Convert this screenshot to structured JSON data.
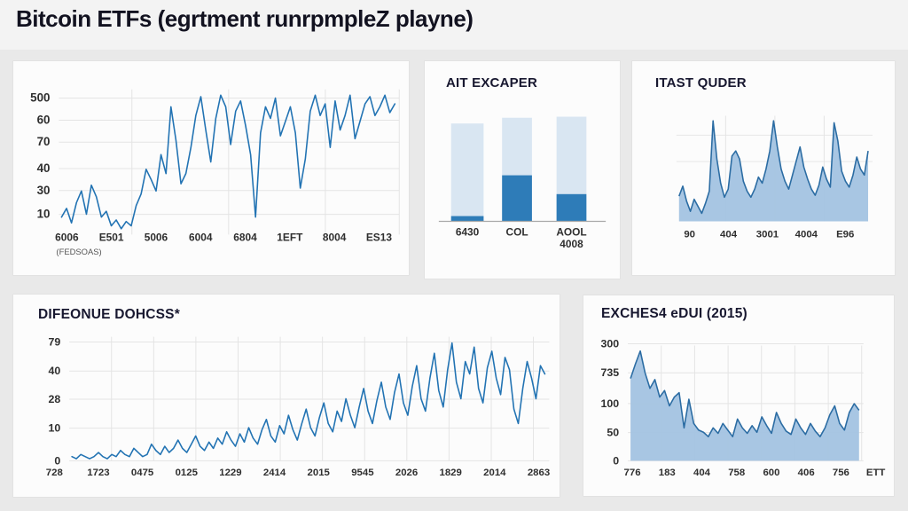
{
  "page_title": "Bitcoin ETFs (egrtment runrpmpleZ playne)",
  "colors": {
    "page_bg": "#e9e9e9",
    "header_bg": "#f3f3f3",
    "card_bg": "#fcfcfc",
    "card_border": "#e2e2e2",
    "title_text": "#121220",
    "panel_title_text": "#181830",
    "axis_text": "#2f2f2f",
    "caption_text": "#555555",
    "grid": "#e4e4e4",
    "axis_line": "#a8a8a8",
    "line": "#2273b3",
    "area_fill": "#a3c3e2",
    "area_stroke": "#2b6ca3",
    "bar_light": "#d9e6f2",
    "bar_dark": "#2e7cb8"
  },
  "chart_data": [
    {
      "id": "tl",
      "type": "line",
      "title": "",
      "y_ticks": [
        "500",
        "60",
        "70",
        "40",
        "30",
        "10"
      ],
      "x_ticks": [
        "6006",
        "E501",
        "5006",
        "6004",
        "6804",
        "1EFT",
        "8004",
        "ES13"
      ],
      "caption": "(FEDSOAS)",
      "ylim": [
        0,
        100
      ],
      "values": [
        12,
        18,
        8,
        22,
        30,
        14,
        34,
        26,
        12,
        16,
        6,
        10,
        4,
        9,
        6,
        20,
        28,
        45,
        38,
        30,
        55,
        42,
        88,
        65,
        35,
        42,
        60,
        82,
        95,
        72,
        50,
        80,
        96,
        88,
        62,
        85,
        92,
        75,
        55,
        12,
        70,
        88,
        80,
        94,
        68,
        78,
        88,
        70,
        32,
        52,
        85,
        96,
        82,
        90,
        60,
        92,
        72,
        82,
        96,
        66,
        78,
        90,
        95,
        82,
        88,
        96,
        84,
        90
      ]
    },
    {
      "id": "tm",
      "type": "bar",
      "title": "AIT EXCAPER",
      "categories": [
        [
          "6430"
        ],
        [
          "COL"
        ],
        [
          "AOOL",
          "4008"
        ]
      ],
      "light_fractions": [
        0.935,
        0.99,
        1.0
      ],
      "dark_fractions": [
        0.05,
        0.44,
        0.26
      ]
    },
    {
      "id": "tr",
      "type": "area",
      "title": "ITAST QUDER",
      "x_ticks": [
        "90",
        "404",
        "3001",
        "4004",
        "E96"
      ],
      "ylim": [
        0,
        105
      ],
      "values": [
        25,
        35,
        20,
        10,
        22,
        15,
        8,
        18,
        30,
        100,
        62,
        38,
        24,
        32,
        65,
        70,
        62,
        40,
        30,
        24,
        32,
        44,
        38,
        52,
        70,
        100,
        74,
        52,
        40,
        32,
        46,
        60,
        74,
        54,
        42,
        32,
        26,
        36,
        54,
        42,
        34,
        98,
        80,
        50,
        40,
        34,
        46,
        64,
        52,
        46,
        70
      ]
    },
    {
      "id": "bl",
      "type": "line",
      "title": "DIFEONUE DOHCSS*",
      "y_ticks": [
        "79",
        "40",
        "28",
        "10",
        "0"
      ],
      "x_ticks": [
        "728",
        "1723",
        "0475",
        "0125",
        "1229",
        "2414",
        "2015",
        "9545",
        "2026",
        "1829",
        "2014",
        "2863"
      ],
      "ylim": [
        0,
        60
      ],
      "values": [
        2,
        1,
        3,
        2,
        1,
        2,
        4,
        2,
        1,
        3,
        2,
        5,
        3,
        2,
        6,
        4,
        2,
        3,
        8,
        5,
        3,
        7,
        4,
        6,
        10,
        6,
        4,
        8,
        12,
        7,
        5,
        9,
        6,
        11,
        8,
        14,
        10,
        7,
        13,
        9,
        16,
        11,
        8,
        15,
        20,
        12,
        9,
        17,
        13,
        22,
        15,
        10,
        18,
        25,
        16,
        12,
        21,
        28,
        18,
        14,
        24,
        19,
        30,
        22,
        16,
        26,
        35,
        24,
        18,
        29,
        38,
        26,
        20,
        33,
        42,
        28,
        22,
        36,
        46,
        30,
        24,
        40,
        52,
        34,
        26,
        44,
        57,
        38,
        30,
        48,
        42,
        55,
        35,
        28,
        45,
        53,
        40,
        32,
        50,
        44,
        25,
        18,
        35,
        48,
        40,
        30,
        46,
        42
      ]
    },
    {
      "id": "br",
      "type": "area",
      "title": "EXCHES4 eDUI (2015)",
      "y_ticks": [
        "300",
        "735",
        "100",
        "50",
        "0"
      ],
      "x_ticks": [
        "776",
        "183",
        "404",
        "758",
        "600",
        "406",
        "756",
        "ETT"
      ],
      "ylim": [
        0,
        105
      ],
      "values": [
        75,
        88,
        100,
        80,
        66,
        74,
        58,
        64,
        50,
        58,
        62,
        30,
        56,
        34,
        28,
        26,
        22,
        30,
        25,
        34,
        28,
        22,
        38,
        30,
        25,
        32,
        26,
        40,
        32,
        25,
        44,
        34,
        27,
        24,
        38,
        30,
        24,
        34,
        27,
        22,
        30,
        42,
        50,
        34,
        28,
        44,
        52,
        46
      ]
    }
  ]
}
